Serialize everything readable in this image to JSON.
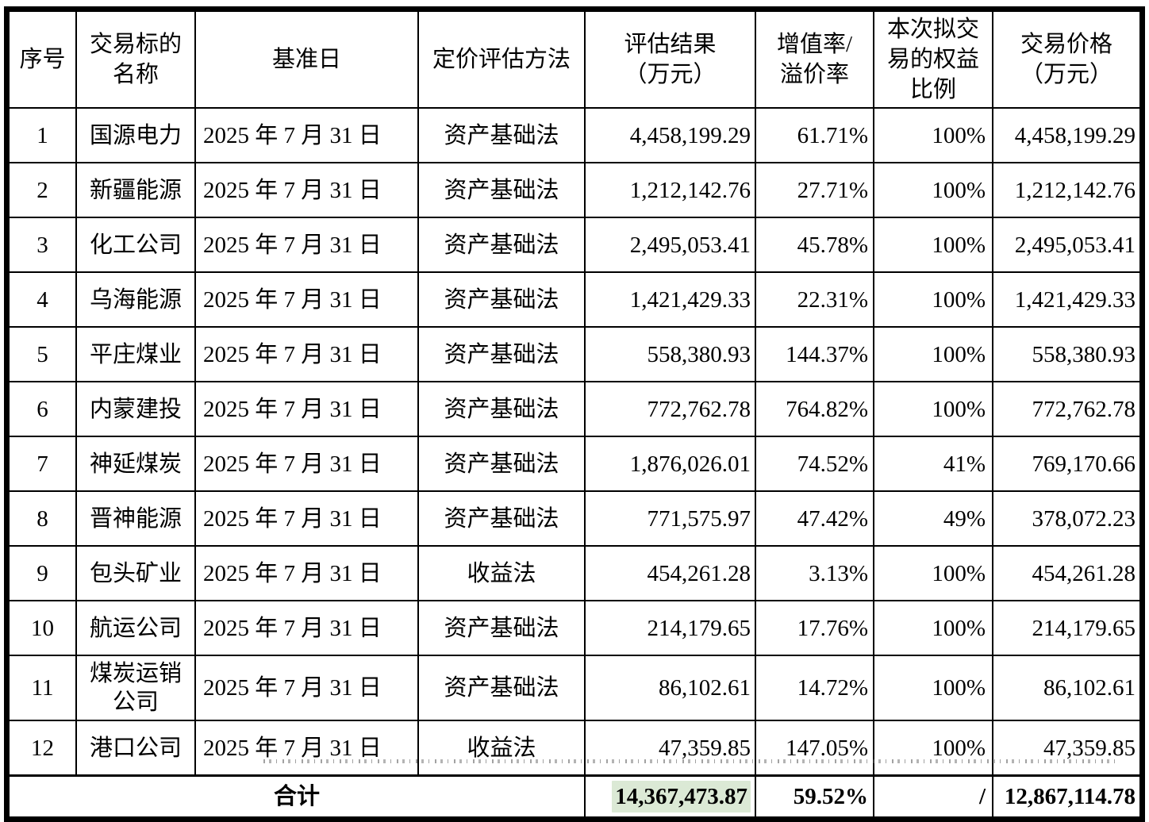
{
  "table": {
    "headers": {
      "index": "序号",
      "name": "交易标的\n名称",
      "date": "基准日",
      "method": "定价评估方法",
      "result": "评估结果\n（万元）",
      "premium": "增值率/\n溢价率",
      "equity": "本次拟交\n易的权益\n比例",
      "price": "交易价格\n（万元）"
    },
    "rows": [
      {
        "no": "1",
        "name": "国源电力",
        "date": "2025 年 7 月 31 日",
        "method": "资产基础法",
        "result": "4,458,199.29",
        "premium": "61.71%",
        "equity": "100%",
        "price": "4,458,199.29"
      },
      {
        "no": "2",
        "name": "新疆能源",
        "date": "2025 年 7 月 31 日",
        "method": "资产基础法",
        "result": "1,212,142.76",
        "premium": "27.71%",
        "equity": "100%",
        "price": "1,212,142.76"
      },
      {
        "no": "3",
        "name": "化工公司",
        "date": "2025 年 7 月 31 日",
        "method": "资产基础法",
        "result": "2,495,053.41",
        "premium": "45.78%",
        "equity": "100%",
        "price": "2,495,053.41"
      },
      {
        "no": "4",
        "name": "乌海能源",
        "date": "2025 年 7 月 31 日",
        "method": "资产基础法",
        "result": "1,421,429.33",
        "premium": "22.31%",
        "equity": "100%",
        "price": "1,421,429.33"
      },
      {
        "no": "5",
        "name": "平庄煤业",
        "date": "2025 年 7 月 31 日",
        "method": "资产基础法",
        "result": "558,380.93",
        "premium": "144.37%",
        "equity": "100%",
        "price": "558,380.93"
      },
      {
        "no": "6",
        "name": "内蒙建投",
        "date": "2025 年 7 月 31 日",
        "method": "资产基础法",
        "result": "772,762.78",
        "premium": "764.82%",
        "equity": "100%",
        "price": "772,762.78"
      },
      {
        "no": "7",
        "name": "神延煤炭",
        "date": "2025 年 7 月 31 日",
        "method": "资产基础法",
        "result": "1,876,026.01",
        "premium": "74.52%",
        "equity": "41%",
        "price": "769,170.66"
      },
      {
        "no": "8",
        "name": "晋神能源",
        "date": "2025 年 7 月 31 日",
        "method": "资产基础法",
        "result": "771,575.97",
        "premium": "47.42%",
        "equity": "49%",
        "price": "378,072.23"
      },
      {
        "no": "9",
        "name": "包头矿业",
        "date": "2025 年 7 月 31 日",
        "method": "收益法",
        "result": "454,261.28",
        "premium": "3.13%",
        "equity": "100%",
        "price": "454,261.28"
      },
      {
        "no": "10",
        "name": "航运公司",
        "date": "2025 年 7 月 31 日",
        "method": "资产基础法",
        "result": "214,179.65",
        "premium": "17.76%",
        "equity": "100%",
        "price": "214,179.65"
      },
      {
        "no": "11",
        "name": "煤炭运销公司",
        "date": "2025 年 7 月 31 日",
        "method": "资产基础法",
        "result": "86,102.61",
        "premium": "14.72%",
        "equity": "100%",
        "price": "86,102.61"
      },
      {
        "no": "12",
        "name": "港口公司",
        "date": "2025 年 7 月 31 日",
        "method": "收益法",
        "result": "47,359.85",
        "premium": "147.05%",
        "equity": "100%",
        "price": "47,359.85"
      }
    ],
    "total": {
      "label": "合计",
      "result": "14,367,473.87",
      "premium": "59.52%",
      "equity": "/",
      "price": "12,867,114.78"
    }
  },
  "colors": {
    "highlight_green": "#dbe9d5",
    "border": "#000000"
  }
}
